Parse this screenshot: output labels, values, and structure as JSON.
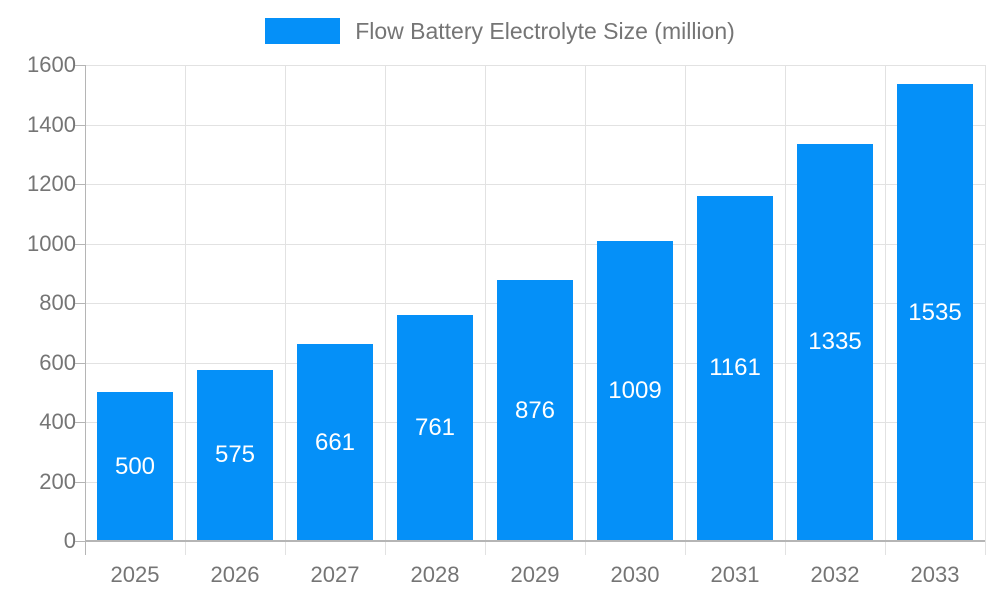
{
  "chart_data": {
    "type": "bar",
    "title": "Flow Battery Electrolyte Size (million)",
    "categories": [
      "2025",
      "2026",
      "2027",
      "2028",
      "2029",
      "2030",
      "2031",
      "2032",
      "2033"
    ],
    "values": [
      500,
      575,
      661,
      761,
      876,
      1009,
      1161,
      1335,
      1535
    ],
    "xlabel": "",
    "ylabel": "",
    "ylim": [
      0,
      1600
    ],
    "ytick_step": 200,
    "grid": true,
    "legend_position": "top",
    "bar_labels_inside": true
  },
  "legend": {
    "label": "Flow Battery Electrolyte Size (million)"
  },
  "colors": {
    "bar": "#0590F8",
    "bar_label": "#ffffff",
    "axis_text": "#757575",
    "legend_text": "#757575",
    "gridline": "#e2e2e2",
    "axis_line": "#b5b5b5",
    "background": "#ffffff"
  }
}
